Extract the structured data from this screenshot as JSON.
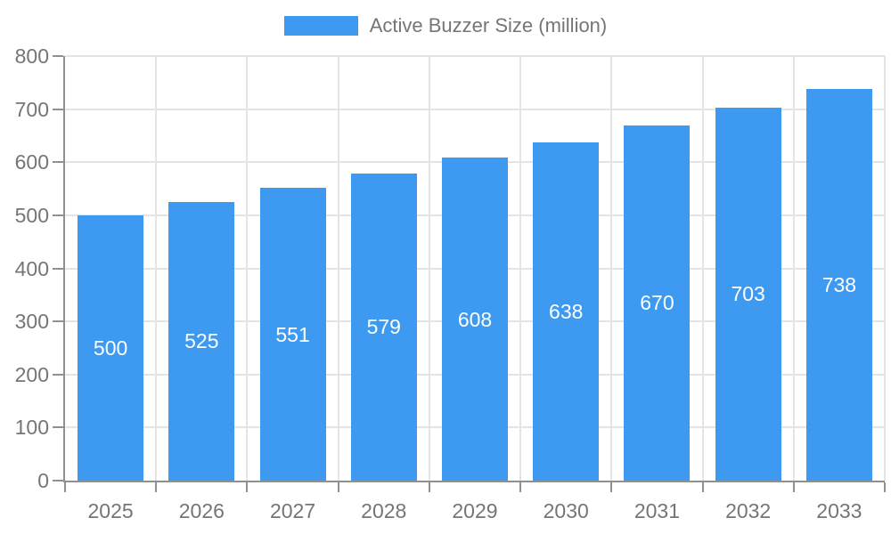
{
  "chart_data": {
    "type": "bar",
    "title": "",
    "legend": {
      "position": "top-center",
      "label": "Active Buzzer Size (million)"
    },
    "categories": [
      "2025",
      "2026",
      "2027",
      "2028",
      "2029",
      "2030",
      "2031",
      "2032",
      "2033"
    ],
    "series": [
      {
        "name": "Active Buzzer Size (million)",
        "color": "#3D9AF0",
        "values": [
          500,
          525,
          551,
          579,
          608,
          638,
          670,
          703,
          738
        ]
      }
    ],
    "xlabel": "",
    "ylabel": "",
    "ylim": [
      0,
      800
    ],
    "yticks": [
      0,
      100,
      200,
      300,
      400,
      500,
      600,
      700,
      800
    ],
    "grid": true,
    "colors": {
      "background": "#FFFFFF",
      "bar": "#3D9AF0",
      "bar_label": "#FFFFFF",
      "gridline": "#E4E4E4",
      "axis_line": "#909090",
      "axis_text": "#757575",
      "legend_text": "#757575"
    }
  }
}
